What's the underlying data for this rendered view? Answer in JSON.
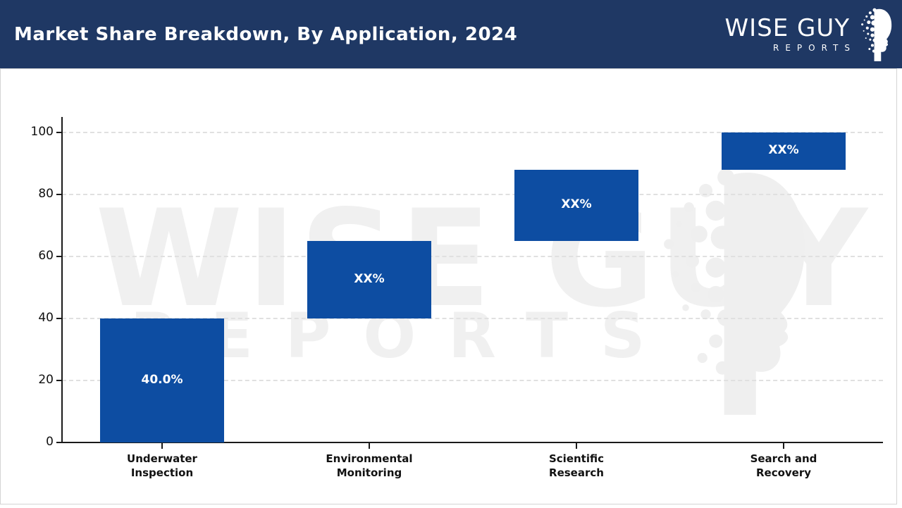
{
  "header": {
    "title": "Market Share Breakdown, By Application, 2024",
    "logo": {
      "line1": "WISE GUY",
      "line2": "REPORTS"
    }
  },
  "watermark": {
    "line1": "WISE GUY",
    "line2": "REPORTS"
  },
  "chart_data": {
    "type": "bar",
    "subtype": "waterfall",
    "title": "Market Share Breakdown, By Application, 2024",
    "categories": [
      "Underwater Inspection",
      "Environmental Monitoring",
      "Scientific Research",
      "Search and Recovery"
    ],
    "category_lines": [
      [
        "Underwater",
        "Inspection"
      ],
      [
        "Environmental",
        "Monitoring"
      ],
      [
        "Scientific",
        "Research"
      ],
      [
        "Search and",
        "Recovery"
      ]
    ],
    "values": [
      40,
      25,
      23,
      12
    ],
    "segment_start": [
      0,
      40,
      65,
      88
    ],
    "segment_end": [
      40,
      65,
      88,
      100
    ],
    "bar_labels": [
      "40.0%",
      "XX%",
      "XX%",
      "XX%"
    ],
    "xlabel": "",
    "ylabel": "",
    "ylim": [
      0,
      105
    ],
    "yticks": [
      0,
      20,
      40,
      60,
      80,
      100
    ],
    "grid": "horizontal-dashed",
    "legend": "none",
    "bar_color": "#0d4da2",
    "bar_label_color": "#ffffff"
  }
}
